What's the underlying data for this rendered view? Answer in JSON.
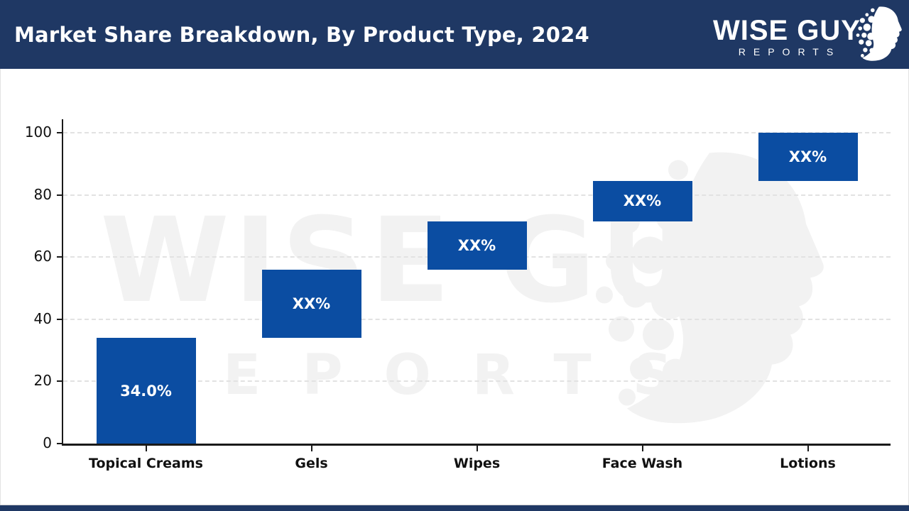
{
  "header": {
    "title": "Market Share Breakdown, By Product Type, 2024",
    "logo": {
      "line1": "WISE GUY",
      "line2": "REPORTS"
    }
  },
  "watermark": {
    "line1": "WISE GUY",
    "line2": "REPORTS"
  },
  "colors": {
    "header_bg": "#1f3864",
    "footer_bg": "#1f3864",
    "bar": "#0b4da2",
    "bar_label": "#ffffff",
    "grid": "#e2e2e2",
    "axis": "#1a1a1a",
    "watermark": "#f2f2f2",
    "title_text": "#ffffff"
  },
  "chart_data": {
    "type": "bar",
    "subtype": "waterfall",
    "title": "Market Share Breakdown, By Product Type, 2024",
    "categories": [
      "Topical Creams",
      "Gels",
      "Wipes",
      "Face Wash",
      "Lotions"
    ],
    "segments": [
      {
        "category": "Topical Creams",
        "start": 0,
        "end": 34,
        "label": "34.0%"
      },
      {
        "category": "Gels",
        "start": 34,
        "end": 56,
        "label": "XX%"
      },
      {
        "category": "Wipes",
        "start": 56,
        "end": 71.5,
        "label": "XX%"
      },
      {
        "category": "Face Wash",
        "start": 71.5,
        "end": 84.5,
        "label": "XX%"
      },
      {
        "category": "Lotions",
        "start": 84.5,
        "end": 100,
        "label": "XX%"
      }
    ],
    "xlabel": "",
    "ylabel": "",
    "ylim": [
      0,
      100
    ],
    "yticks": [
      0,
      20,
      40,
      60,
      80,
      100
    ],
    "grid": "horizontal-dashed",
    "legend": "none"
  }
}
